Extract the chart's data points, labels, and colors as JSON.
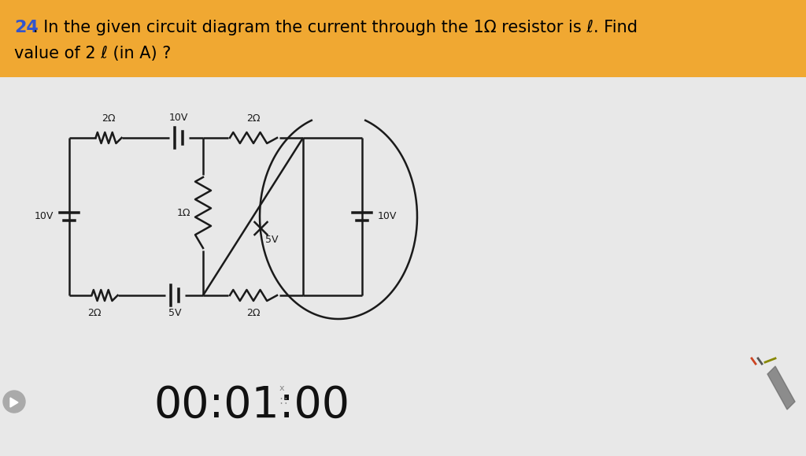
{
  "bg_color": "#e8e8e8",
  "header_bg": "#f0a832",
  "header_text_num": "24",
  "header_text_main": ". In the given circuit diagram the current through the 1Ω resistor is ℓ. Find",
  "header_text2": "value of 2 ℓ (in A) ?",
  "header_fontsize": 14,
  "timer_text": "00:01:00",
  "timer_fontsize": 40,
  "circuit_color": "#1a1a1a",
  "label_fontsize": 9,
  "wire_lw": 1.8
}
